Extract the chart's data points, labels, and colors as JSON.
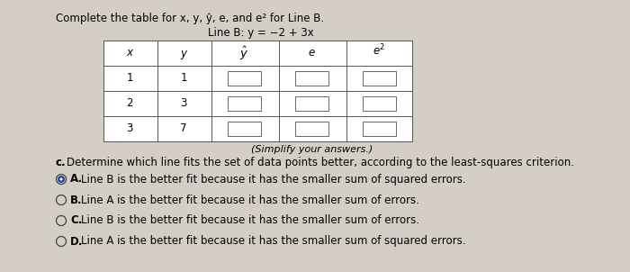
{
  "title_text": "Complete the table for x, y, ŷ, e, and e² for Line B.",
  "line_b_label": "Line B: y = −2 + 3x",
  "rows": [
    [
      "1",
      "1"
    ],
    [
      "2",
      "3"
    ],
    [
      "3",
      "7"
    ]
  ],
  "simplify_note": "(Simplify your answers.)",
  "part_c_label": "Determine which line fits the set of data points better, according to the least-squares criterion.",
  "options": [
    {
      "letter": "A",
      "text": "Line B is the better fit because it has the smaller sum of squared errors.",
      "selected": true
    },
    {
      "letter": "B",
      "text": "Line A is the better fit because it has the smaller sum of errors.",
      "selected": false
    },
    {
      "letter": "C",
      "text": "Line B is the better fit because it has the smaller sum of errors.",
      "selected": false
    },
    {
      "letter": "D",
      "text": "Line A is the better fit because it has the smaller sum of squared errors.",
      "selected": false
    }
  ],
  "bg_color": "#d4cec6",
  "text_color": "#000000",
  "fs_title": 8.5,
  "fs_body": 8.5,
  "fs_table": 8.5
}
